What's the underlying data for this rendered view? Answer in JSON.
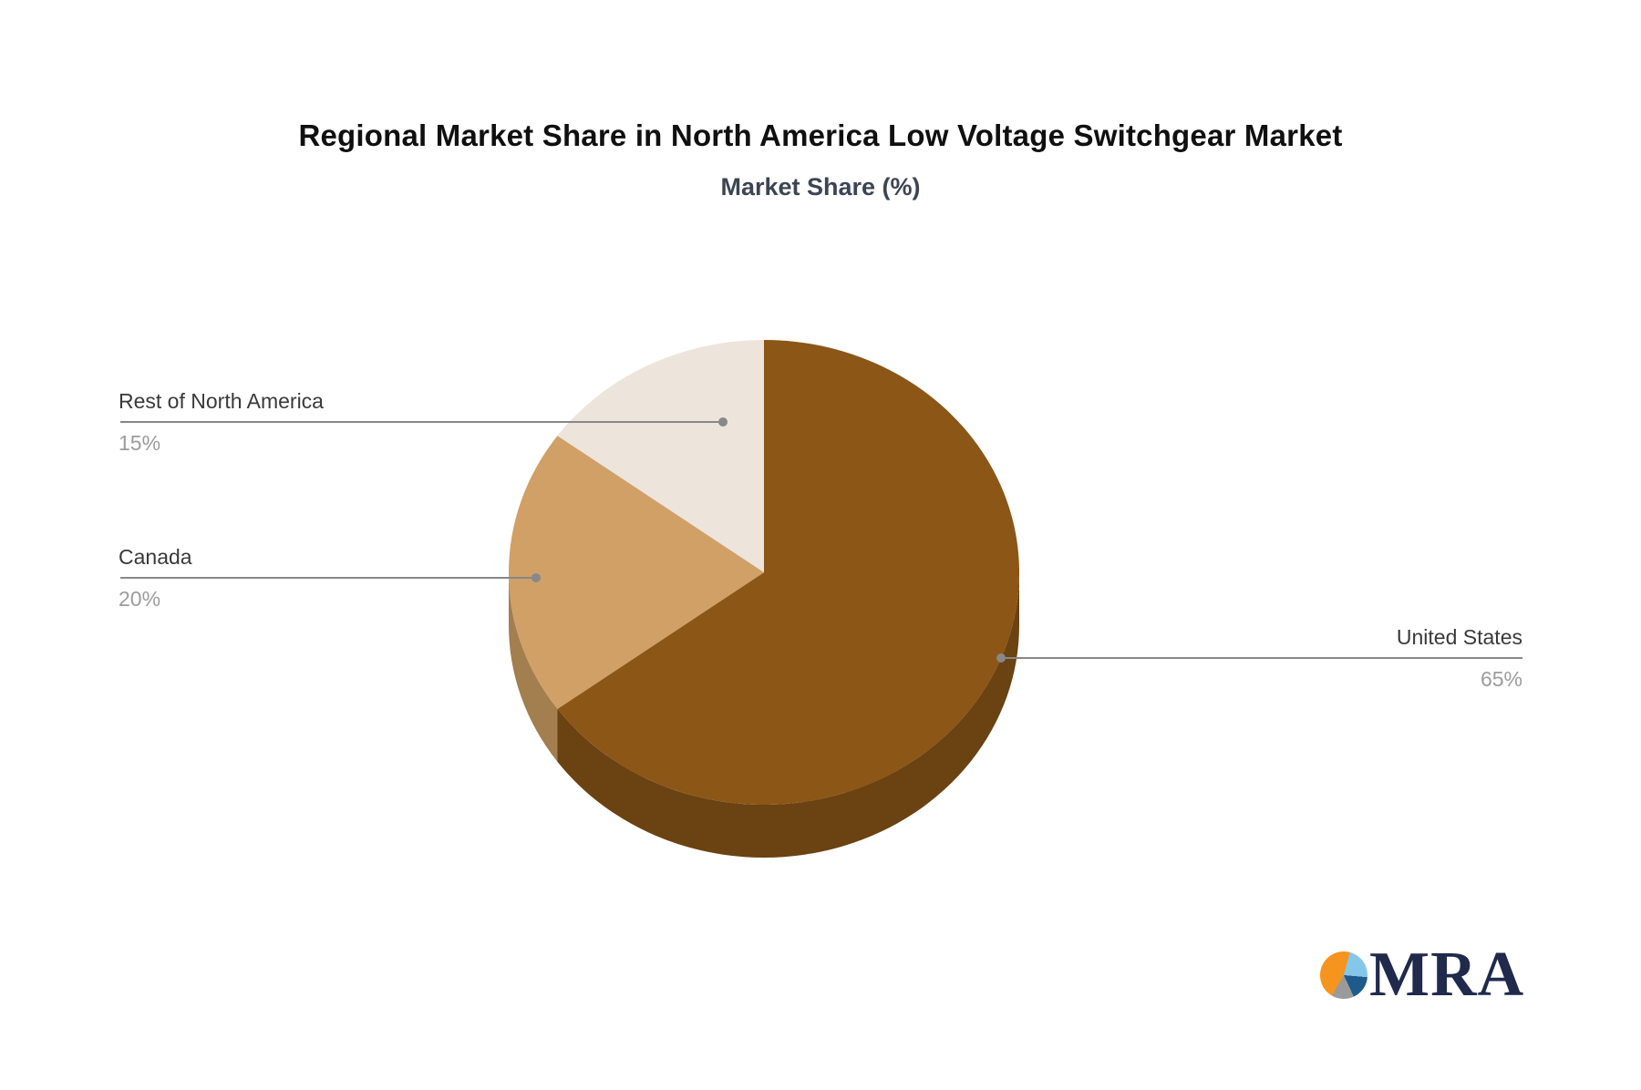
{
  "title": "Regional Market Share in North America Low Voltage Switchgear Market",
  "subtitle": "Market Share (%)",
  "chart_data": {
    "type": "pie",
    "style": "3d",
    "unit": "%",
    "start_angle_deg": 0,
    "direction": "clockwise",
    "categories": [
      "United States",
      "Canada",
      "Rest of North America"
    ],
    "values": [
      65,
      20,
      15
    ],
    "labels": [
      "65%",
      "20%",
      "15%"
    ],
    "colors": [
      "#8C5617",
      "#D0A066",
      "#EDE4DB"
    ],
    "side_colors": [
      "#6B4211",
      "#A37E4E",
      "#D8CEC4"
    ],
    "leader_line_color": "#888888",
    "label_color": "#3A3A3A",
    "percent_color": "#9C9C9C",
    "legend": "none",
    "background": "#FFFFFF"
  },
  "logo": {
    "text": "MRA",
    "text_color": "#1F2A4C",
    "pie_slices": [
      {
        "name": "orange",
        "color": "#F5941F",
        "from": 210,
        "to": 375
      },
      {
        "name": "light-blue",
        "color": "#85C7EA",
        "from": 15,
        "to": 95
      },
      {
        "name": "dark-blue",
        "color": "#1E5A8C",
        "from": 95,
        "to": 155
      },
      {
        "name": "gray",
        "color": "#9A9A9A",
        "from": 155,
        "to": 210
      }
    ]
  },
  "colors": {
    "title": "#101010",
    "subtitle": "#3C4553",
    "background": "#FFFFFF"
  }
}
